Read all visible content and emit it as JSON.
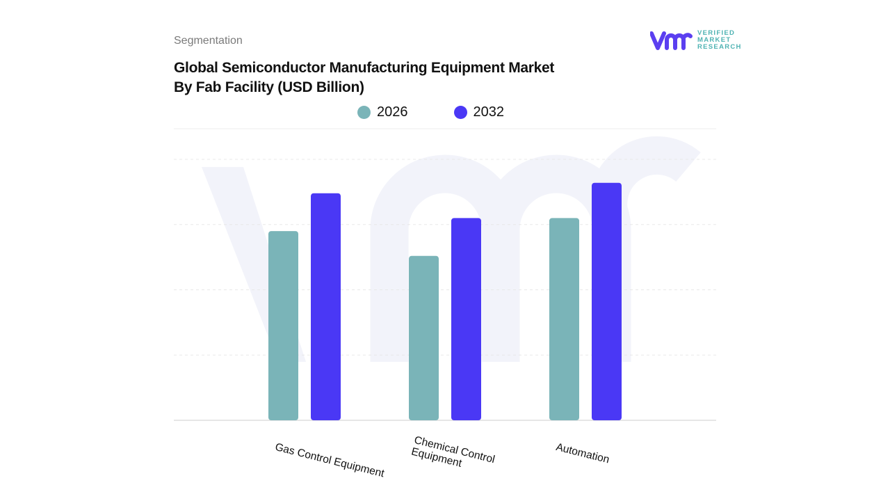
{
  "header": {
    "section": "Segmentation",
    "title_line1": "Global Semiconductor Manufacturing Equipment Market",
    "title_line2": "By Fab Facility (USD Billion)"
  },
  "logo": {
    "text": "VERIFIED MARKET RESEARCH",
    "line1": "VERIFIED",
    "line2": "MARKET",
    "line3": "RESEARCH"
  },
  "colors": {
    "series_2026": "#7ab4b8",
    "series_2032": "#4a38f5",
    "logo_purple": "#5b3ff0",
    "logo_teal": "#4fb3b3"
  },
  "chart_data": {
    "type": "bar",
    "title": "Global Semiconductor Manufacturing Equipment Market By Fab Facility (USD Billion)",
    "categories": [
      "Gas Control Equipment",
      "Chemical Control\nEquipment",
      "Automation"
    ],
    "series": [
      {
        "name": "2026",
        "values": [
          2.9,
          2.52,
          3.1
        ]
      },
      {
        "name": "2032",
        "values": [
          3.48,
          3.1,
          3.64
        ]
      }
    ],
    "ylim": [
      0,
      4
    ],
    "grid": true,
    "legend": "top-center",
    "xlabel": "",
    "ylabel": ""
  }
}
